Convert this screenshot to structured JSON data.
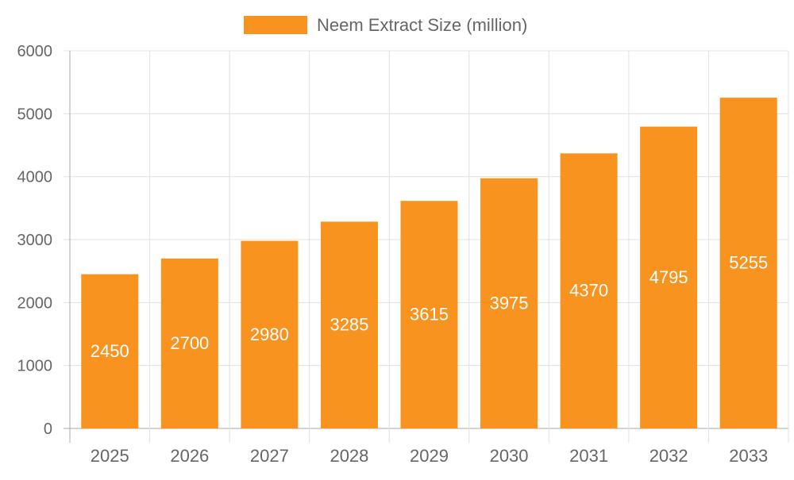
{
  "chart_data": {
    "type": "bar",
    "categories": [
      "2025",
      "2026",
      "2027",
      "2028",
      "2029",
      "2030",
      "2031",
      "2032",
      "2033"
    ],
    "series": [
      {
        "name": "Neem Extract Size (million)",
        "values": [
          2450,
          2700,
          2980,
          3285,
          3615,
          3975,
          4370,
          4795,
          5255
        ],
        "color": "#F7931E"
      }
    ],
    "yticks": [
      "0",
      "1000",
      "2000",
      "3000",
      "4000",
      "5000",
      "6000"
    ],
    "ylim": [
      0,
      6000
    ],
    "grid": true,
    "legend": "top-center",
    "data_labels": true
  }
}
